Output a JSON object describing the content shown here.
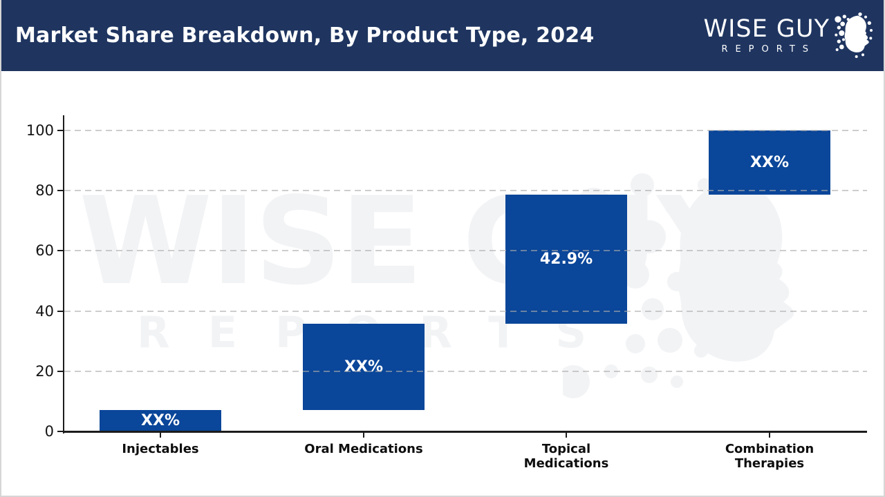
{
  "header": {
    "logo": {
      "line1": "WISE GUY",
      "line2": "REPORTS"
    }
  },
  "watermark": {
    "line1": "WISE GUY",
    "line2": "REPORTS"
  },
  "colors": {
    "header_background": "#1f3560",
    "bar_blue": "#0a4699",
    "axis": "#1c1c1c",
    "gridline": "#cfcfcf",
    "watermark_gray": "#f2f3f5",
    "title_text": "#ffffff",
    "bar_label_text": "#ffffff"
  },
  "chart_data": {
    "type": "bar",
    "subtype": "waterfall-floating-bars",
    "title": "Market Share Breakdown, By Product Type, 2024",
    "categories": [
      "Injectables",
      "Oral Medications",
      "Topical Medications",
      "Combination Therapies"
    ],
    "category_labels": [
      [
        "Injectables"
      ],
      [
        "Oral Medications"
      ],
      [
        "Topical",
        "Medications"
      ],
      [
        "Combination",
        "Therapies"
      ]
    ],
    "segments": [
      {
        "category": "Injectables",
        "start": 0,
        "end": 7.1,
        "value": 7.1,
        "label": "XX%"
      },
      {
        "category": "Oral Medications",
        "start": 7.1,
        "end": 35.7,
        "value": 28.6,
        "label": "XX%"
      },
      {
        "category": "Topical Medications",
        "start": 35.7,
        "end": 78.6,
        "value": 42.9,
        "label": "42.9%"
      },
      {
        "category": "Combination Therapies",
        "start": 78.6,
        "end": 100,
        "value": 21.4,
        "label": "XX%"
      }
    ],
    "xlabel": "",
    "ylabel": "",
    "ylim": [
      0,
      100
    ],
    "yticks": [
      0,
      20,
      40,
      60,
      80,
      100
    ],
    "grid": "horizontal dashed, drawn over bars",
    "legend": "none",
    "bar_color": "#0a4699",
    "label_color": "#ffffff"
  }
}
